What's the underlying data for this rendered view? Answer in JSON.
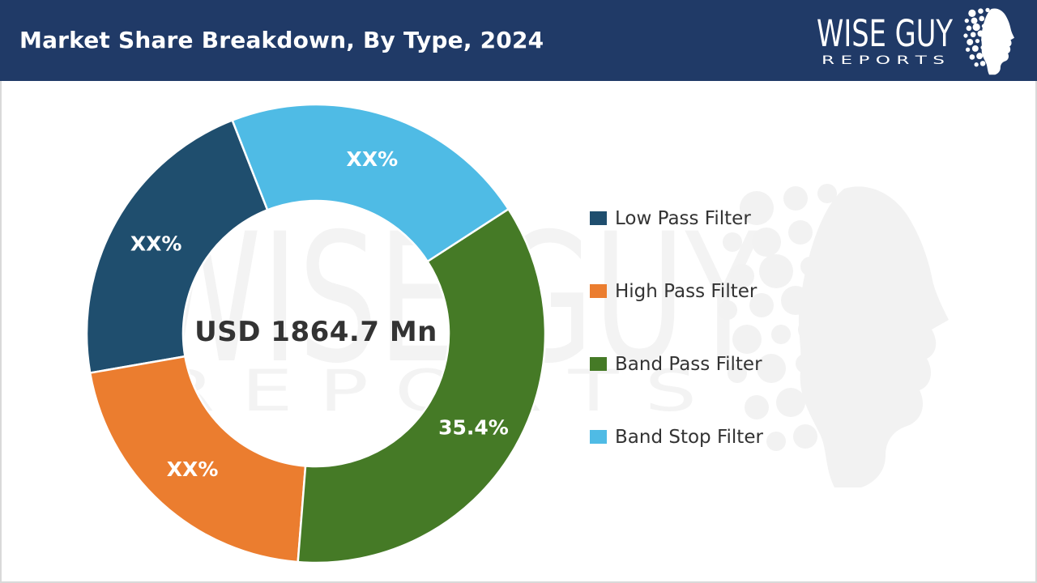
{
  "header": {
    "title": "Market Share Breakdown, By Type, 2024",
    "background_color": "#203A67",
    "logo": {
      "line1": "WISE GUY",
      "line2": "R E P O R T S"
    }
  },
  "watermark": {
    "line1": "WISE GUY",
    "line2": "R E P O R T S"
  },
  "chart_data": {
    "type": "pie",
    "variant": "donut",
    "title": "Market Share Breakdown, By Type, 2024",
    "center_label": "USD 1864.7 Mn",
    "start_angle_deg": 111.4,
    "direction": "counterclockwise",
    "inner_radius_ratio": 0.58,
    "legend_position": "right",
    "segments": [
      {
        "id": "low-pass-filter",
        "name": "Low Pass Filter",
        "value": 21.8,
        "display": "XX%",
        "color": "#1F4E6E"
      },
      {
        "id": "high-pass-filter",
        "name": "High Pass Filter",
        "value": 21.0,
        "display": "XX%",
        "color": "#EB7D2F"
      },
      {
        "id": "band-pass-filter",
        "name": "Band Pass Filter",
        "value": 35.4,
        "display": "35.4%",
        "color": "#457A26"
      },
      {
        "id": "band-stop-filter",
        "name": "Band Stop Filter",
        "value": 21.8,
        "display": "XX%",
        "color": "#4FBBE5"
      }
    ]
  },
  "colors": {
    "header_navy": "#203A67",
    "watermark_gray": "#f3f3f3",
    "text_dark": "#333333",
    "frame_gray": "#d9d9d9"
  }
}
